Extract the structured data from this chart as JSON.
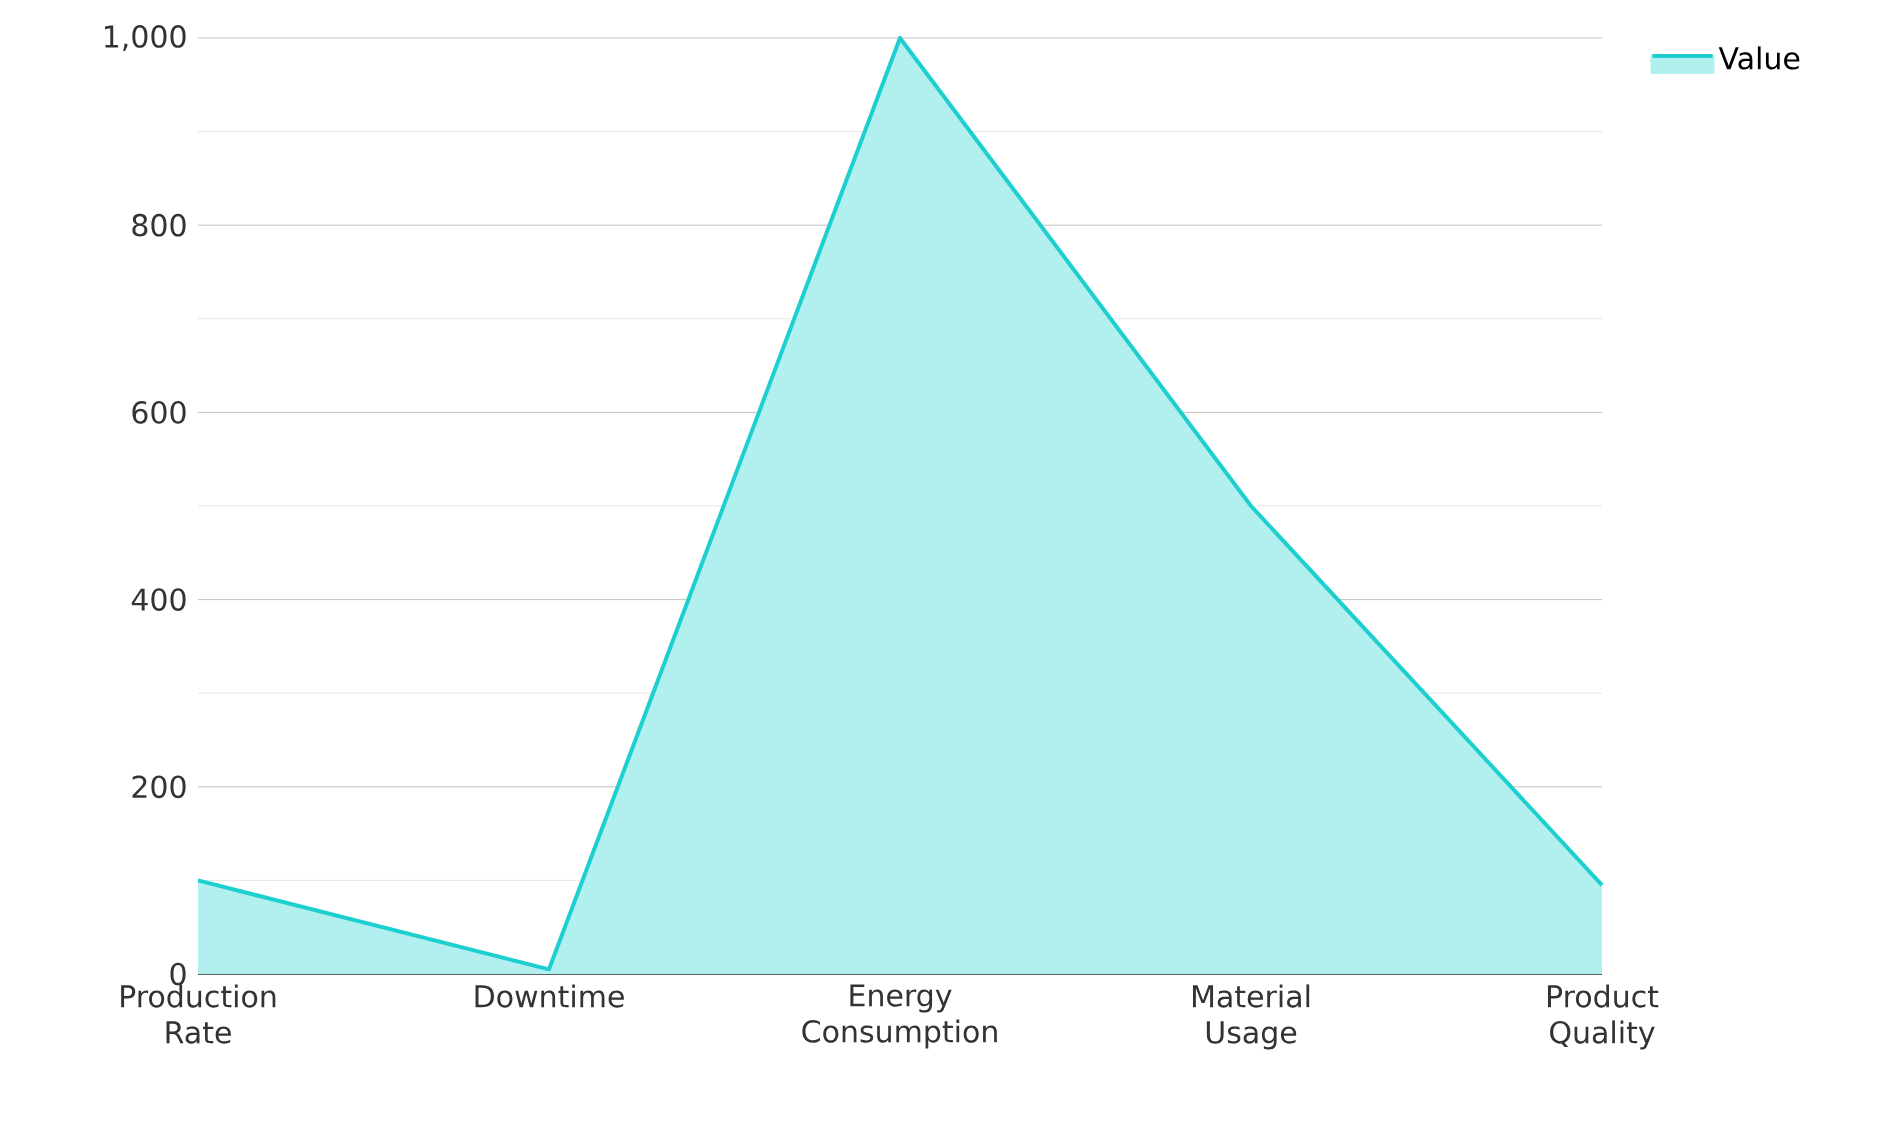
{
  "chart_data": {
    "type": "area",
    "categories": [
      "Production Rate",
      "Downtime",
      "Energy Consumption",
      "Material Usage",
      "Product Quality"
    ],
    "series": [
      {
        "name": "Value",
        "color": "#1ecfcf",
        "values": [
          100,
          5,
          1000,
          500,
          95
        ]
      }
    ],
    "ylim": [
      0,
      1000
    ],
    "yticks": [
      0,
      200,
      400,
      600,
      800,
      {
        "value": 1000,
        "label": "1,000"
      }
    ],
    "grid": true,
    "legend": "top right"
  }
}
